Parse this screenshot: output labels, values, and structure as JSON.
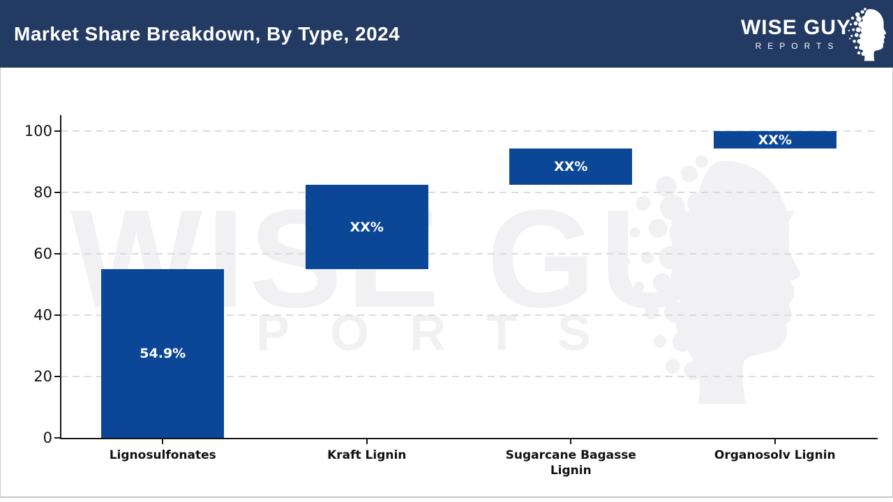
{
  "header": {
    "title": "Market Share Breakdown, By Type, 2024",
    "bg_color": "#233A63",
    "logo": {
      "line1": "WISE GUY",
      "line2": "REPORTS"
    }
  },
  "watermark": {
    "line1": "WISE GUY",
    "line2": "REPORTS"
  },
  "chart_data": {
    "type": "bar",
    "subtype": "waterfall",
    "title": "Market Share Breakdown, By Type, 2024",
    "categories": [
      "Lignosulfonates",
      "Kraft Lignin",
      "Sugarcane Bagasse Lignin",
      "Organosolv Lignin"
    ],
    "segments": [
      {
        "start": 0,
        "end": 54.9,
        "label": "54.9%"
      },
      {
        "start": 54.9,
        "end": 82.5,
        "label": "XX%"
      },
      {
        "start": 82.5,
        "end": 94.3,
        "label": "XX%"
      },
      {
        "start": 94.3,
        "end": 100,
        "label": "XX%"
      }
    ],
    "yticks": [
      0,
      20,
      40,
      60,
      80,
      100
    ],
    "ytick_labels": [
      "0",
      "20",
      "40",
      "60",
      "80",
      "100"
    ],
    "ylim": [
      0,
      105
    ],
    "grid": "horizontal-dashed",
    "legend": "none",
    "bar_color": "#0B4796",
    "bar_label_color": "#ffffff",
    "axis_color": "#141414",
    "grid_color": "#DBDBDB"
  }
}
